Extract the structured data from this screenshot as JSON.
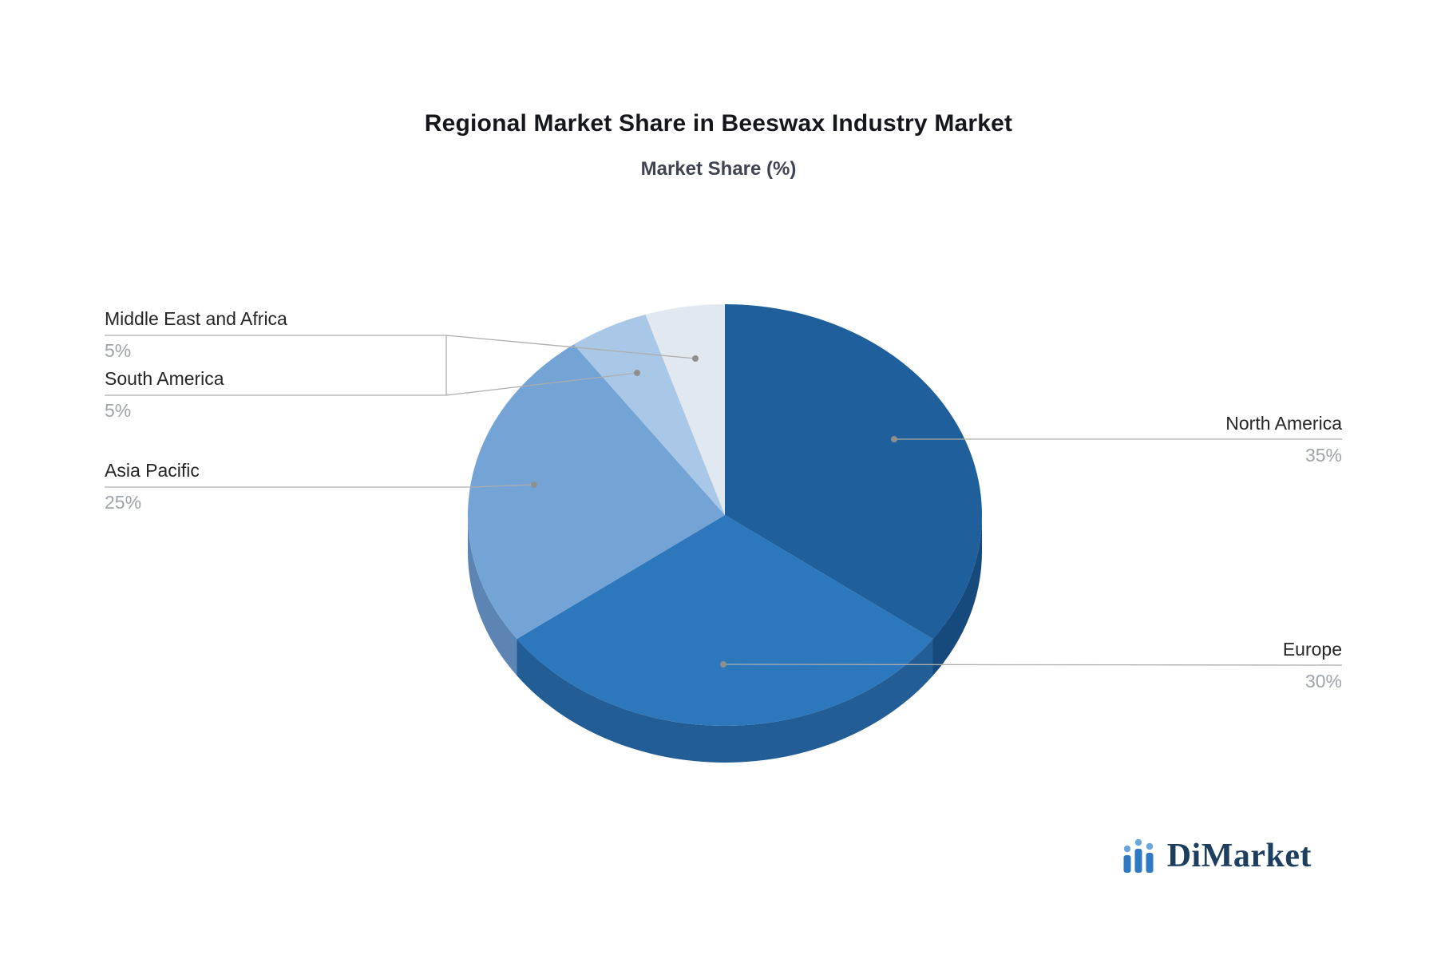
{
  "page": {
    "title": "Regional Market Share in Beeswax Industry Market",
    "subtitle": "Market Share (%)"
  },
  "chart_data": {
    "type": "pie",
    "title": "Regional Market Share in Beeswax Industry Market",
    "subtitle": "Market Share (%)",
    "unit": "%",
    "style": "3d-pie",
    "start_angle_deg": 0,
    "direction": "clockwise",
    "legend": "none",
    "label_style": "callout-leader-lines",
    "slices": [
      {
        "label": "North America",
        "value": 35,
        "display": "35%",
        "color": "#1f609c",
        "side_color": "#174a7c"
      },
      {
        "label": "Europe",
        "value": 30,
        "display": "30%",
        "color": "#2d77bc",
        "side_color": "#225d96"
      },
      {
        "label": "Asia Pacific",
        "value": 25,
        "display": "25%",
        "color": "#74a3d6",
        "side_color": "#5c85b3"
      },
      {
        "label": "South America",
        "value": 5,
        "display": "5%",
        "color": "#a9c7e6",
        "side_color": "#8aa7c4"
      },
      {
        "label": "Middle East and Africa",
        "value": 5,
        "display": "5%",
        "color": "#e2e8f0",
        "side_color": "#bdc7d3"
      }
    ]
  },
  "branding": {
    "logo_text": "DiMarket",
    "logo_text_color": "#1d3e5f",
    "logo_bar_color": "#2e79c2",
    "logo_dot_color": "#6aa5dc"
  },
  "callout_line_color": "#adadad",
  "callout_dot_color": "#8f8f8f"
}
